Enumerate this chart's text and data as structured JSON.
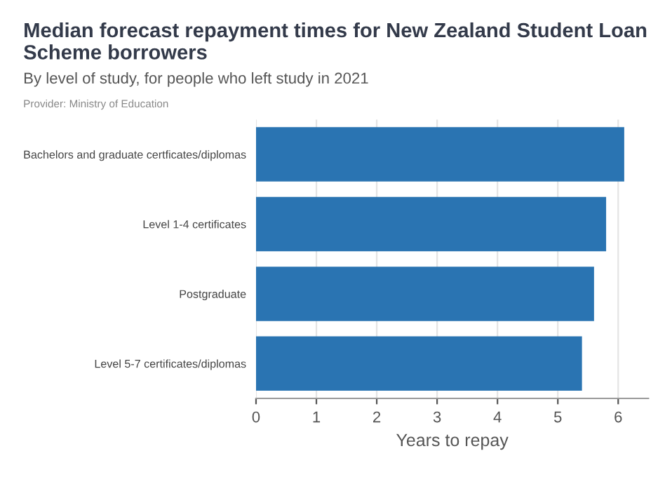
{
  "chart_data": {
    "type": "bar",
    "orientation": "horizontal",
    "title": "Median forecast repayment times for New Zealand Student Loan Scheme borrowers",
    "subtitle": "By level of study, for people who left study in 2021",
    "annotations": [
      "Provider: Ministry of Education"
    ],
    "xlabel": "Years to repay",
    "categories": [
      "Bachelors and graduate certficates/diplomas",
      "Level 1-4 certificates",
      "Postgraduate",
      "Level 5-7 certificates/diplomas"
    ],
    "values": [
      6.1,
      5.8,
      5.6,
      5.4
    ],
    "color": "#2a74b2",
    "xlim": [
      0,
      6.5
    ],
    "xticks": [
      0,
      1,
      2,
      3,
      4,
      5,
      6
    ],
    "grid": "x",
    "legend": false
  }
}
